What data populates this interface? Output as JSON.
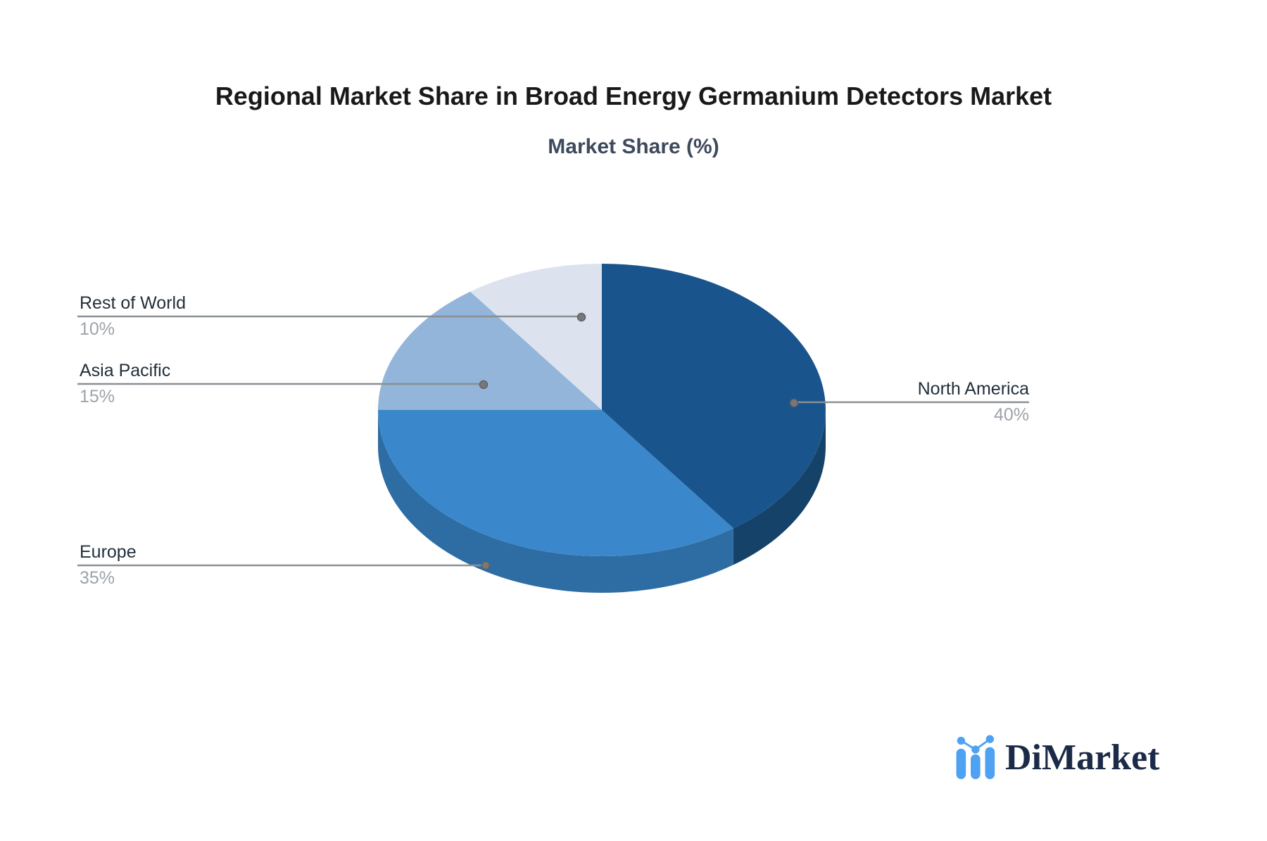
{
  "title": "Regional Market Share in Broad Energy Germanium Detectors Market",
  "subtitle": "Market Share (%)",
  "callouts": {
    "north_america": {
      "label": "North America",
      "pct": "40%"
    },
    "europe": {
      "label": "Europe",
      "pct": "35%"
    },
    "asia_pacific": {
      "label": "Asia Pacific",
      "pct": "15%"
    },
    "rest_of_world": {
      "label": "Rest of World",
      "pct": "10%"
    }
  },
  "logo": {
    "text": "DiMarket",
    "icon": "bar-chart-logo-icon",
    "icon_color": "#4FA2F2",
    "text_color": "#1B2A47"
  },
  "chart_data": {
    "type": "pie",
    "title": "Regional Market Share in Broad Energy Germanium Detectors Market",
    "subtitle": "Market Share (%)",
    "unit": "%",
    "style": "3d-depth",
    "direction": "clockwise",
    "start_angle_deg": 0,
    "legend_position": "callout-labels",
    "labels": [
      "North America",
      "Europe",
      "Asia Pacific",
      "Rest of World"
    ],
    "values": [
      40,
      35,
      15,
      10
    ],
    "colors": [
      "#1A548C",
      "#3A88CB",
      "#93B5DA",
      "#DCE3EF"
    ],
    "side_colors": [
      "#154268",
      "#2D6DA3",
      "#7FA3C8",
      "#C2CCDD"
    ],
    "leader_line_color": "#8A8F94",
    "label_color": "#232F3B",
    "pct_color": "#9CA3AB"
  }
}
